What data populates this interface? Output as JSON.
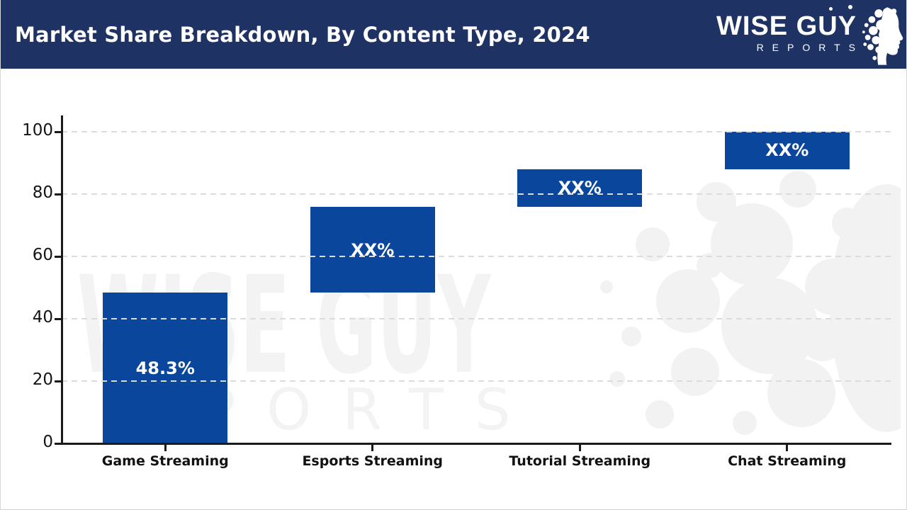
{
  "header": {
    "title": "Market Share Breakdown, By Content Type, 2024",
    "logo": {
      "line1": "WISE GUY",
      "line2": "REPORTS"
    }
  },
  "watermark": {
    "line1": "WISE GUY",
    "line2": "PORTS"
  },
  "chart_data": {
    "type": "bar",
    "subtype": "waterfall-breakdown",
    "title": "Market Share Breakdown, By Content Type, 2024",
    "categories": [
      "Game Streaming",
      "Esports Streaming",
      "Tutorial Streaming",
      "Chat Streaming"
    ],
    "segments": [
      {
        "category": "Game Streaming",
        "start": 0,
        "end": 48.3,
        "label": "48.3%"
      },
      {
        "category": "Esports Streaming",
        "start": 48.3,
        "end": 76,
        "label": "XX%"
      },
      {
        "category": "Tutorial Streaming",
        "start": 76,
        "end": 88,
        "label": "XX%"
      },
      {
        "category": "Chat Streaming",
        "start": 88,
        "end": 100,
        "label": "XX%"
      }
    ],
    "yticks": [
      0,
      20,
      40,
      60,
      80,
      100
    ],
    "ylim": [
      0,
      105
    ],
    "xlabel": "",
    "ylabel": "",
    "grid": "horizontal-dashed",
    "legend": "none",
    "colors": {
      "bar": "#0a469b",
      "bar_label": "#ffffff",
      "grid": "#dcdcdc",
      "axis": "#1a1a1a",
      "header_bg": "#1e3263",
      "watermark": "#f3f3f4"
    }
  }
}
